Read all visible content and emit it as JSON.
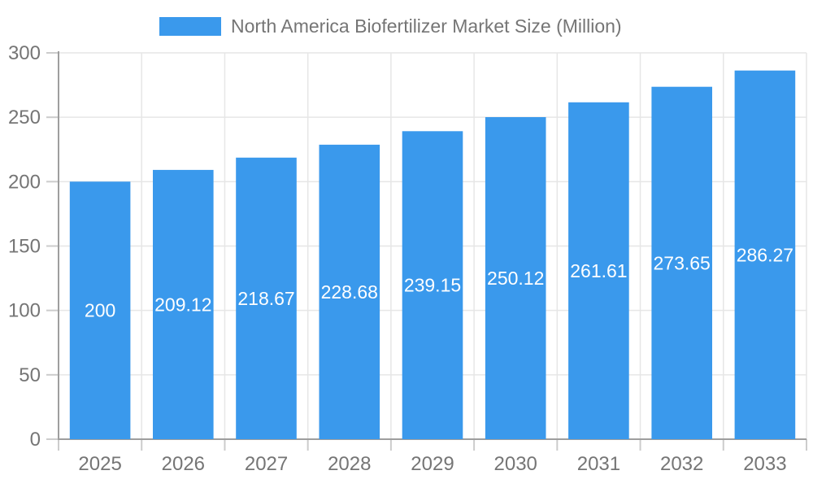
{
  "legend": {
    "label": "North America Biofertilizer Market Size (Million)"
  },
  "chart_data": {
    "type": "bar",
    "title": "North America Biofertilizer Market Size (Million)",
    "categories": [
      "2025",
      "2026",
      "2027",
      "2028",
      "2029",
      "2030",
      "2031",
      "2032",
      "2033"
    ],
    "values": [
      200,
      209.12,
      218.67,
      228.68,
      239.15,
      250.12,
      261.61,
      273.65,
      286.27
    ],
    "value_labels": [
      "200",
      "209.12",
      "218.67",
      "228.68",
      "239.15",
      "250.12",
      "261.61",
      "273.65",
      "286.27"
    ],
    "xlabel": "",
    "ylabel": "",
    "ylim": [
      0,
      300
    ],
    "yticks": [
      0,
      50,
      100,
      150,
      200,
      250,
      300
    ],
    "grid": true,
    "legend_position": "top",
    "bar_width_ratio": 0.73,
    "colors": {
      "bar": "#3A99EC",
      "bar_label": "#ffffff",
      "axis_text": "#757575",
      "axis_line": "#9e9e9e",
      "tick_line": "#cccccc",
      "grid_line": "#e6e6e6",
      "background": "#ffffff"
    }
  }
}
